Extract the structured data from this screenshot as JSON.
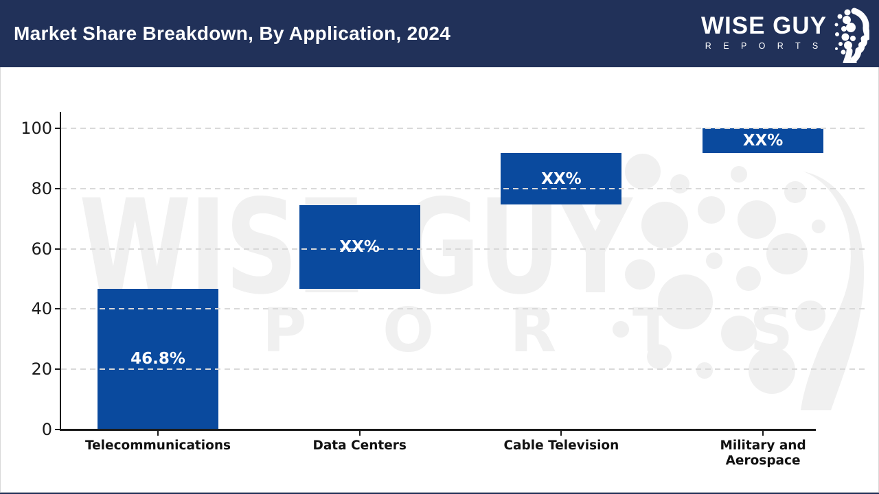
{
  "header": {
    "title": "Market Share Breakdown, By Application, 2024",
    "logo": {
      "wordmark": "WISE GUY",
      "sub": "R E P O R T S",
      "head_icon": "dotted-head-profile-icon"
    }
  },
  "watermark": {
    "wordmark": "WISE GUY",
    "sub": "P O R T S"
  },
  "colors": {
    "header_bg": "#213159",
    "bar": "#0A4A9E",
    "bar_label": "#ffffff",
    "axis": "#1a1a1a",
    "tick_label": "#1a1a1a",
    "grid": "#d9d9d9",
    "watermark": "#f0f0f0",
    "border": "#d9d9d9"
  },
  "chart_data": {
    "type": "bar",
    "subtype": "waterfall",
    "title": "Market Share Breakdown, By Application, 2024",
    "ylabel": "",
    "xlabel": "",
    "ylim": [
      0,
      104
    ],
    "yticks": [
      0,
      20,
      40,
      60,
      80,
      100
    ],
    "grid": "horizontal-dashed",
    "legend": false,
    "categories": [
      "Telecommunications",
      "Data Centers",
      "Cable Television",
      "Military and Aerospace"
    ],
    "segments": [
      {
        "category": "Telecommunications",
        "display": "Telecommunications",
        "start": 0,
        "end": 46.8,
        "value": 46.8,
        "label": "46.8%"
      },
      {
        "category": "Data Centers",
        "display": "Data Centers",
        "start": 46.8,
        "end": 74.6,
        "value": 27.8,
        "label": "XX%"
      },
      {
        "category": "Cable Television",
        "display": "Cable Television",
        "start": 74.6,
        "end": 91.8,
        "value": 17.2,
        "label": "XX%"
      },
      {
        "category": "Military and Aerospace",
        "display": "Military and\nAerospace",
        "start": 91.8,
        "end": 100,
        "value": 8.2,
        "label": "XX%"
      }
    ]
  }
}
